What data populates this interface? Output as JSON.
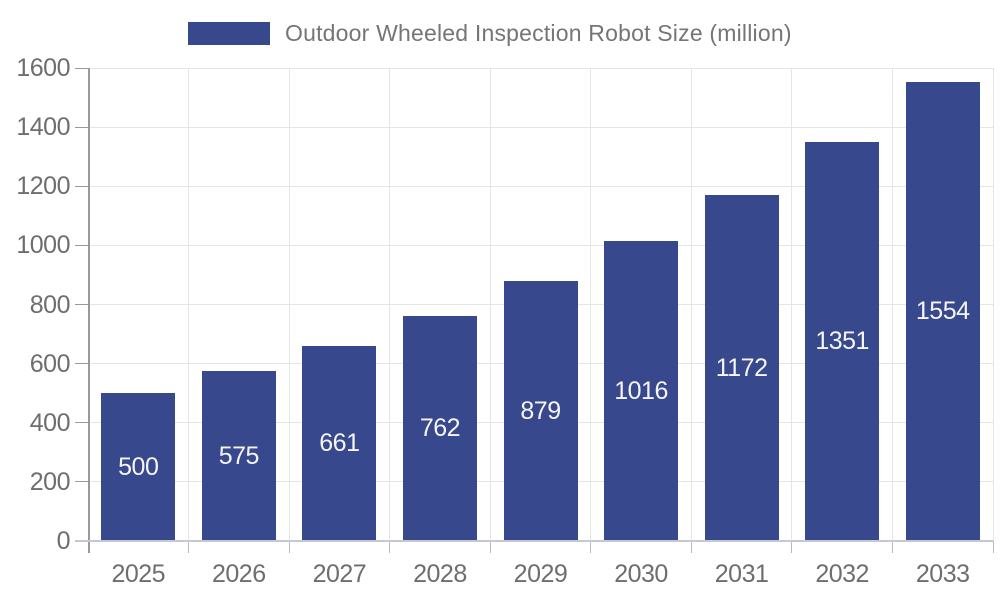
{
  "chart_data": {
    "type": "bar",
    "title": "Outdoor Wheeled Inspection Robot Size (million)",
    "categories": [
      "2025",
      "2026",
      "2027",
      "2028",
      "2029",
      "2030",
      "2031",
      "2032",
      "2033"
    ],
    "series": [
      {
        "name": "Outdoor Wheeled Inspection Robot Size (million)",
        "values": [
          500,
          575,
          661,
          762,
          879,
          1016,
          1172,
          1351,
          1554
        ]
      }
    ],
    "xlabel": "",
    "ylabel": "",
    "ylim": [
      0,
      1600
    ],
    "yticks": [
      0,
      200,
      400,
      600,
      800,
      1000,
      1200,
      1400,
      1600
    ],
    "grid": true,
    "bar_value_labels": true,
    "legend_position": "top",
    "colors": {
      "bar": "#38488C",
      "grid": "#e5e5e5",
      "y_axis_line": "#999999",
      "x_axis_line": "#c3c8d2",
      "left_tick": "#9a9a9a",
      "bottom_tick": "#b7bcc6",
      "axis_label": "#6e6e6e",
      "value_label": "#f5f5f5",
      "legend_text": "#757575",
      "background": "#ffffff"
    }
  }
}
